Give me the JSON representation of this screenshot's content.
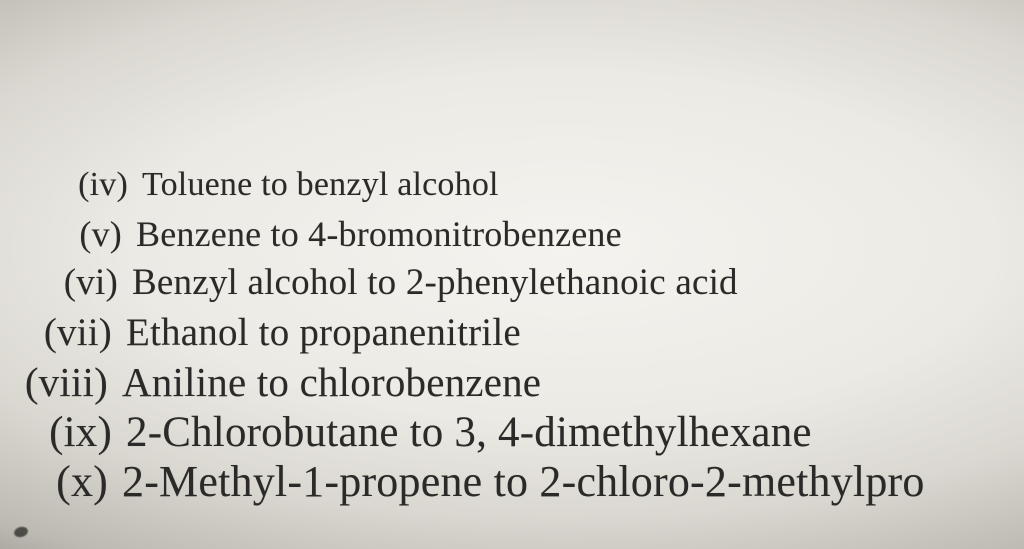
{
  "document": {
    "type": "printed-textbook-page",
    "background_color": "#eceae4",
    "text_color": "#2b2a28",
    "font_family": "Georgia, 'Times New Roman', serif",
    "base_fontsize_pt": 28,
    "items": [
      {
        "marker": "(iv)",
        "text": "Toluene to benzyl alcohol",
        "fontsize": 34
      },
      {
        "marker": "(v)",
        "text": "Benzene to 4-bromonitrobenzene",
        "fontsize": 36
      },
      {
        "marker": "(vi)",
        "text": "Benzyl alcohol to 2-phenylethanoic acid",
        "fontsize": 37
      },
      {
        "marker": "(vii)",
        "text": "Ethanol to propanenitrile",
        "fontsize": 39
      },
      {
        "marker": "(viii)",
        "text": "Aniline to chlorobenzene",
        "fontsize": 41
      },
      {
        "marker": "(ix)",
        "text": "2-Chlorobutane to 3, 4-dimethylhexane",
        "fontsize": 43
      },
      {
        "marker": "(x)",
        "text": "2-Methyl-1-propene to 2-chloro-2-methylpro",
        "fontsize": 44
      }
    ]
  }
}
